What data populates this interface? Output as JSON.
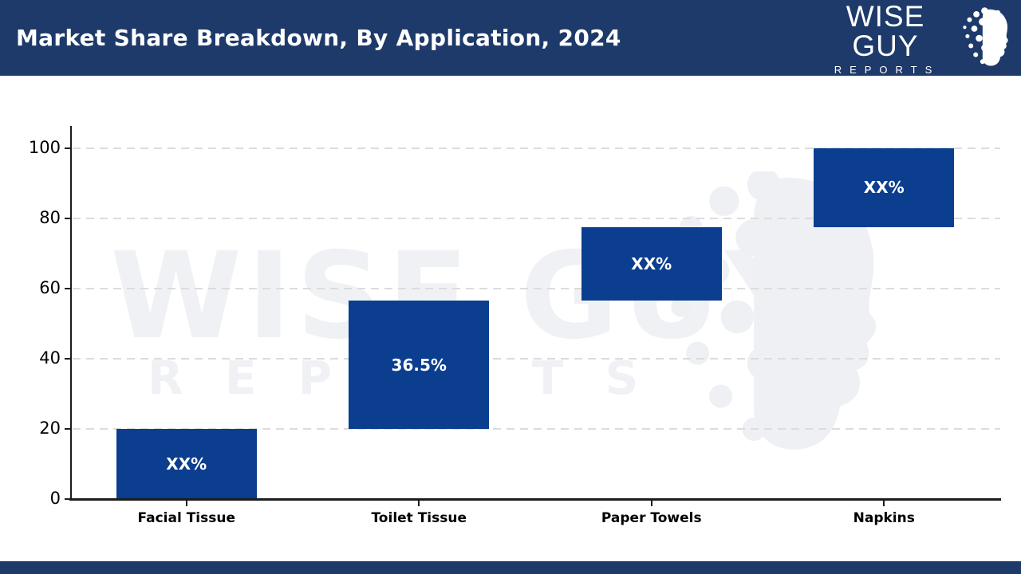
{
  "header": {
    "title": "Market Share Breakdown, By Application, 2024",
    "logo_line1": "WISE GUY",
    "logo_line2": "REPORTS"
  },
  "watermark": {
    "line1": "WISE GUY",
    "line2": "R E P O R T S"
  },
  "colors": {
    "header_bg": "#1e3a6a",
    "bar": "#0b3e8f",
    "bar_label": "#ffffff",
    "grid": "#dcdcdc",
    "axis": "#1c1c1c",
    "watermark": "#f0f1f4"
  },
  "chart_data": {
    "type": "bar",
    "variant": "waterfall",
    "title": "Market Share Breakdown, By Application, 2024",
    "categories": [
      "Facial Tissue",
      "Toilet Tissue",
      "Paper Towels",
      "Napkins"
    ],
    "bars": [
      {
        "category": "Facial Tissue",
        "start": 0,
        "end": 20,
        "label": "XX%"
      },
      {
        "category": "Toilet Tissue",
        "start": 20,
        "end": 56.5,
        "label": "36.5%"
      },
      {
        "category": "Paper Towels",
        "start": 56.5,
        "end": 77.6,
        "label": "XX%"
      },
      {
        "category": "Napkins",
        "start": 77.6,
        "end": 100,
        "label": "XX%"
      }
    ],
    "xlabel": "",
    "ylabel": "",
    "yticks": [
      0,
      20,
      40,
      60,
      80,
      100
    ],
    "ylim": [
      0,
      106
    ],
    "grid": "horizontal-dashed",
    "legend": "none"
  }
}
